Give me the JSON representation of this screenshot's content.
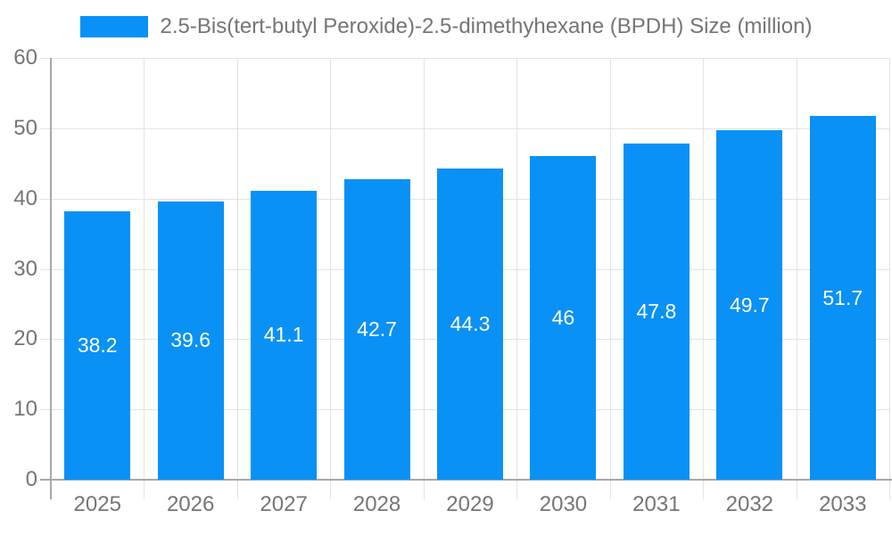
{
  "chart_data": {
    "type": "bar",
    "title": "2.5-Bis(tert-butyl Peroxide)-2.5-dimethyhexane (BPDH) Size (million)",
    "legend_position": "top",
    "categories": [
      "2025",
      "2026",
      "2027",
      "2028",
      "2029",
      "2030",
      "2031",
      "2032",
      "2033"
    ],
    "series": [
      {
        "name": "2.5-Bis(tert-butyl Peroxide)-2.5-dimethyhexane (BPDH) Size (million)",
        "values": [
          38.2,
          39.6,
          41.1,
          42.7,
          44.3,
          46,
          47.8,
          49.7,
          51.7
        ],
        "value_labels": [
          "38.2",
          "39.6",
          "41.1",
          "42.7",
          "44.3",
          "46",
          "47.8",
          "49.7",
          "51.7"
        ]
      }
    ],
    "xlabel": "",
    "ylabel": "",
    "ylim": [
      0,
      60
    ],
    "yticks": [
      "0",
      "10",
      "20",
      "30",
      "40",
      "50",
      "60"
    ],
    "grid": true,
    "colors": {
      "bar": "#0991F5",
      "bar_label": "#FFFFFF",
      "axis_line": "#A8A8A8",
      "gridline": "#E3E3E3",
      "tick_label": "#757575",
      "legend_text": "#757575",
      "background": "#FFFFFF"
    }
  }
}
